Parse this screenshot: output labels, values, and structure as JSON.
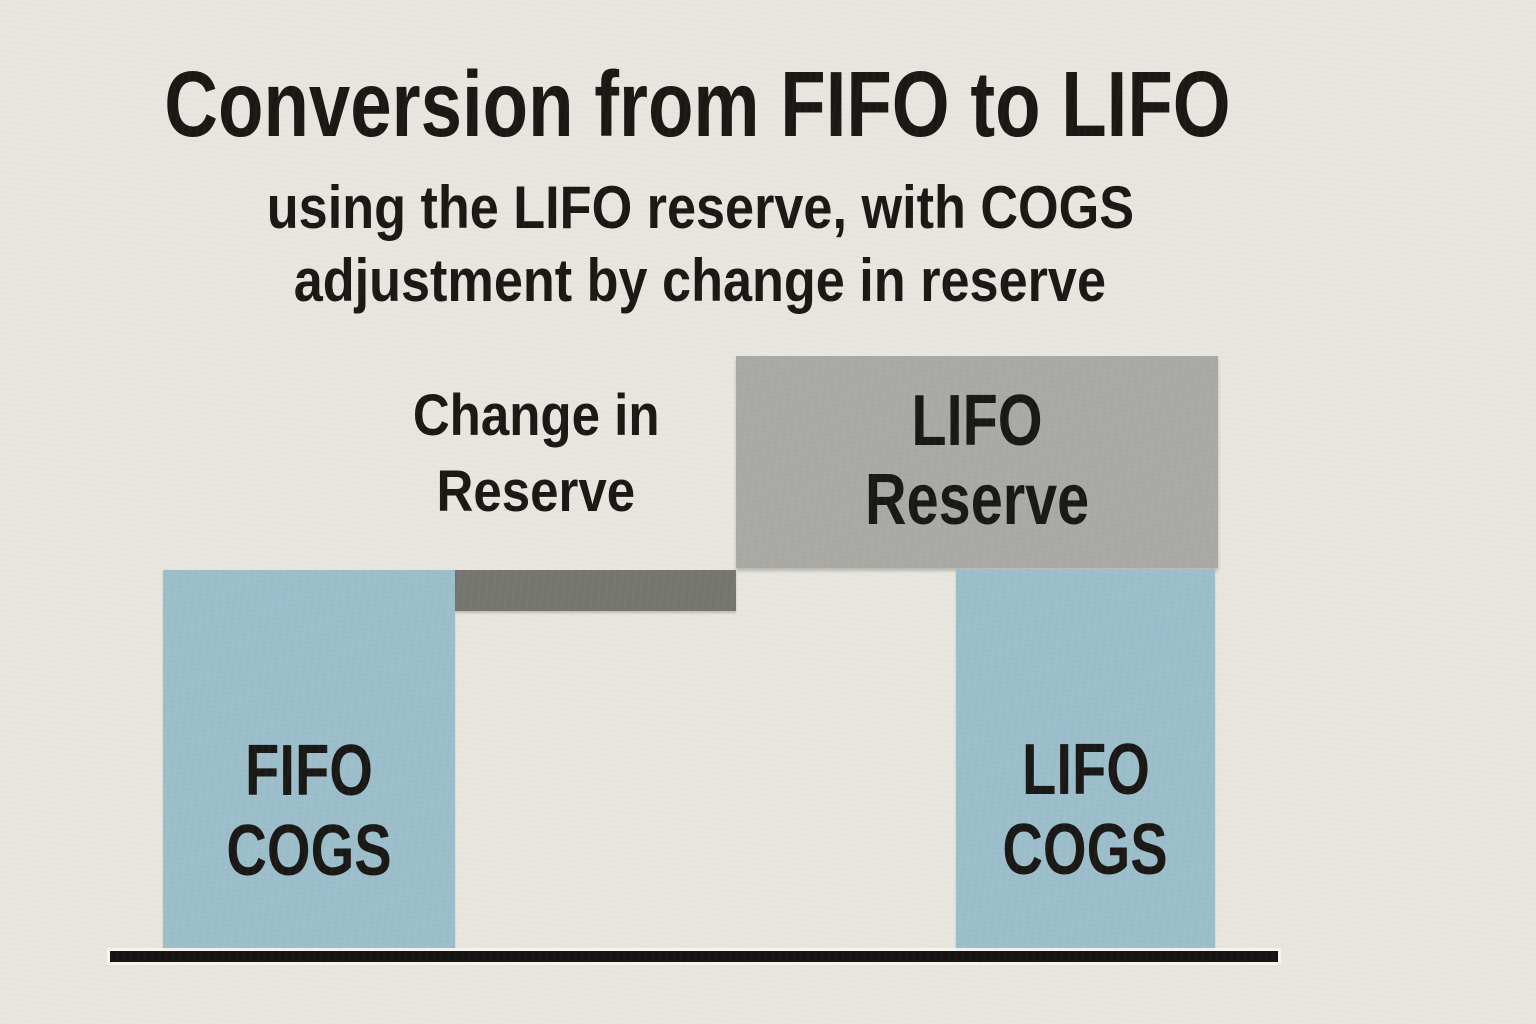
{
  "page": {
    "background_color": "#e9e6e0",
    "text_color": "#1a1814"
  },
  "title": "Conversion from FIFO to LIFO",
  "subtitle": {
    "line1": "using the LIFO reserve, with COGS",
    "line2": "adjustment by change in reserve"
  },
  "diagram": {
    "change_label": {
      "line1": "Change in",
      "line2": "Reserve"
    },
    "reserve_box": {
      "line1": "LIFO",
      "line2": "Reserve",
      "fill": "#a9a9a5"
    },
    "change_strip": {
      "fill": "#75766f"
    },
    "fifo_bar": {
      "line1": "FIFO",
      "line2": "COGS",
      "fill": "#9cbecb"
    },
    "lifo_bar": {
      "line1": "LIFO",
      "line2": "COGS",
      "fill": "#9cbecb"
    },
    "baseline": {
      "fill": "#161412"
    }
  }
}
